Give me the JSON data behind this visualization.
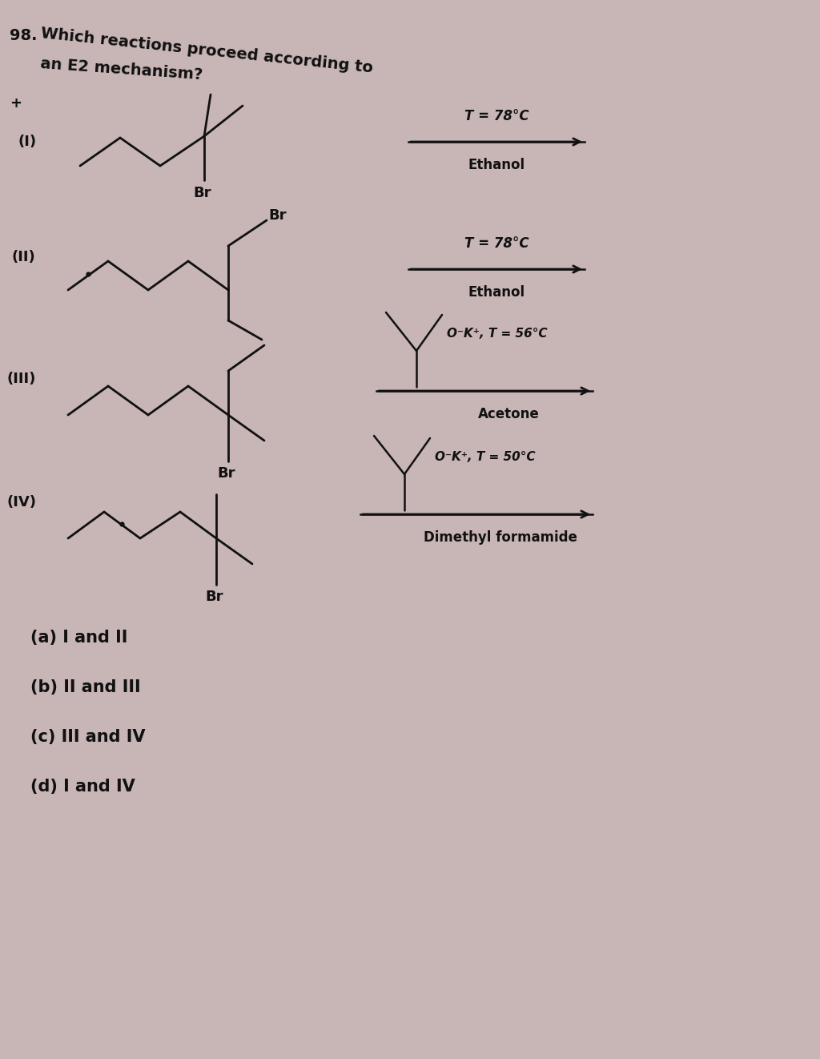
{
  "background_color": "#c8b5b5",
  "text_color": "#111111",
  "q_number": "98.",
  "q_text1": "Which reactions proceed according to",
  "q_text2": "an E2 mechanism?",
  "choices": [
    "(a) I and II",
    "(b) II and III",
    "(c) III and IV",
    "(d) I and IV"
  ]
}
